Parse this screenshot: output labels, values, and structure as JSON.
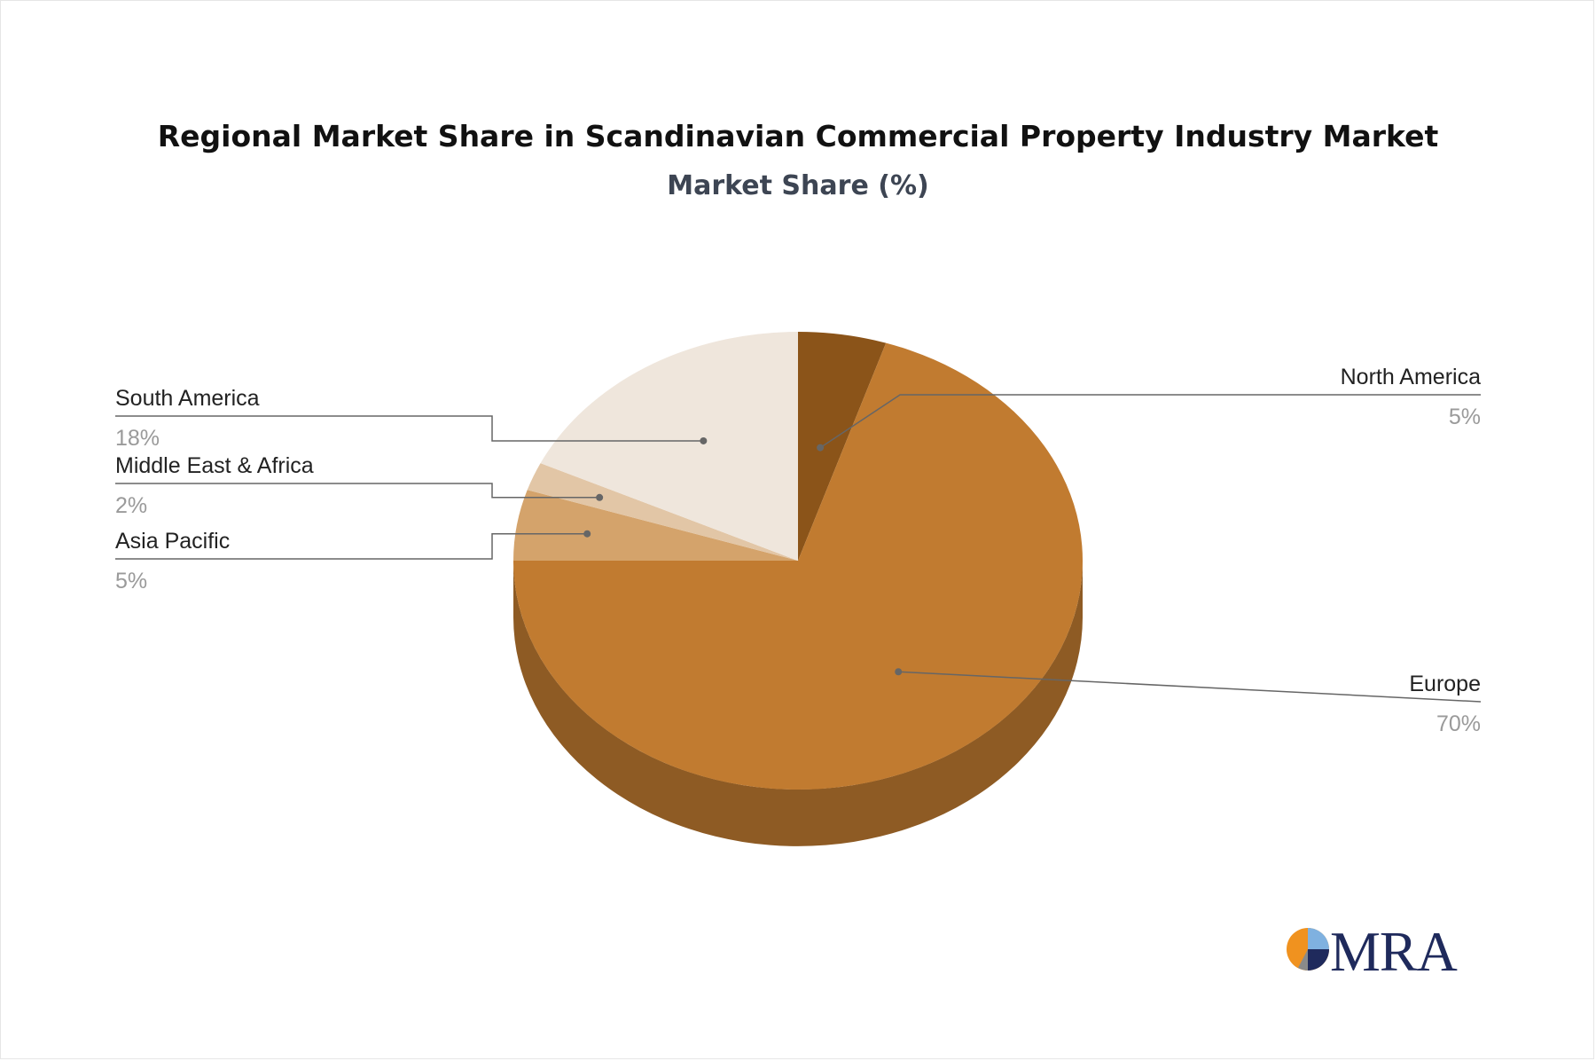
{
  "header": {
    "title": "Regional Market Share in Scandinavian Commercial Property Industry Market",
    "subtitle": "Market Share (%)"
  },
  "chart_data": {
    "type": "pie",
    "title": "Regional Market Share in Scandinavian Commercial Property Industry Market",
    "subtitle": "Market Share (%)",
    "slices": [
      {
        "label": "North America",
        "value": 5,
        "display": "5%",
        "color": "#8b5419"
      },
      {
        "label": "Europe",
        "value": 70,
        "display": "70%",
        "color": "#c17b30"
      },
      {
        "label": "Asia Pacific",
        "value": 5,
        "display": "5%",
        "color": "#d4a36b"
      },
      {
        "label": "Middle East & Africa",
        "value": 2,
        "display": "2%",
        "color": "#e2c6a6"
      },
      {
        "label": "South America",
        "value": 18,
        "display": "18%",
        "color": "#efe6dc"
      }
    ],
    "side_color": "#8e5b24",
    "leader_color": "#666666"
  },
  "logo": {
    "text": "MRA"
  }
}
